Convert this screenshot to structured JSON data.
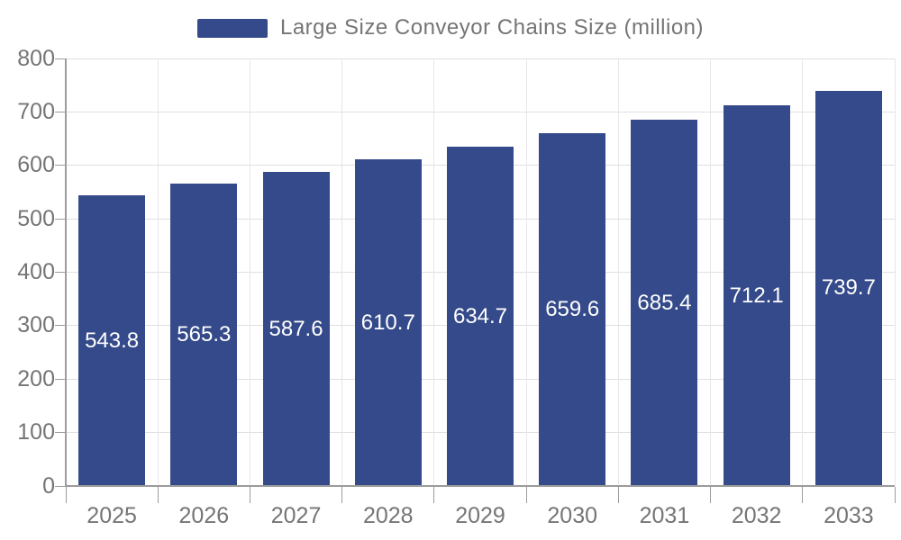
{
  "legend": {
    "label": "Large Size Conveyor Chains Size (million)",
    "swatch_color": "#354A8A"
  },
  "chart_data": {
    "type": "bar",
    "title": "Large Size Conveyor Chains Size (million)",
    "categories": [
      "2025",
      "2026",
      "2027",
      "2028",
      "2029",
      "2030",
      "2031",
      "2032",
      "2033"
    ],
    "values": [
      543.8,
      565.3,
      587.6,
      610.7,
      634.7,
      659.6,
      685.4,
      712.1,
      739.7
    ],
    "value_labels": [
      "543.8",
      "565.3",
      "587.6",
      "610.7",
      "634.7",
      "659.6",
      "685.4",
      "712.1",
      "739.7"
    ],
    "xlabel": "",
    "ylabel": "",
    "ylim": [
      0,
      800
    ],
    "ytick_step": 100,
    "ytick_labels": [
      "0",
      "100",
      "200",
      "300",
      "400",
      "500",
      "600",
      "700",
      "800"
    ],
    "grid": true,
    "legend_position": "top",
    "bar_color": "#354A8A",
    "value_label_color": "#FFFFFF",
    "axis_color": "#9C9C9C",
    "grid_color": "#E0E0E0",
    "tick_label_color": "#757575"
  }
}
